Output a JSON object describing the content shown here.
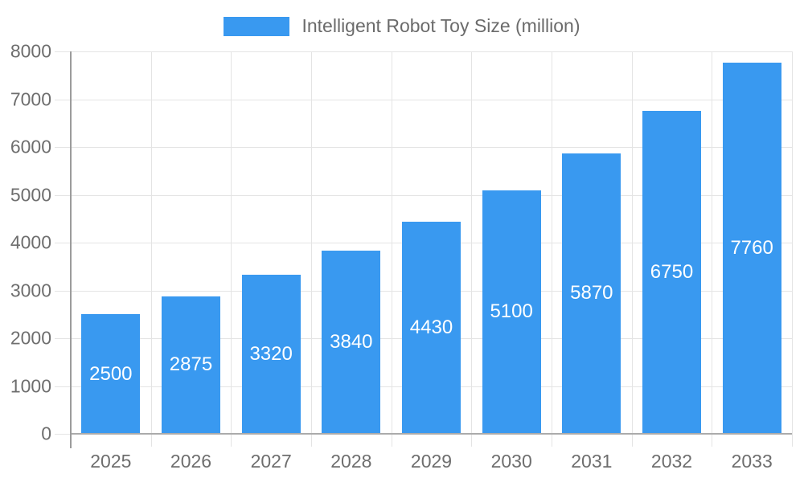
{
  "legend": {
    "label": "Intelligent Robot Toy Size (million)"
  },
  "chart_data": {
    "type": "bar",
    "title": "Intelligent Robot Toy Size (million)",
    "categories": [
      "2025",
      "2026",
      "2027",
      "2028",
      "2029",
      "2030",
      "2031",
      "2032",
      "2033"
    ],
    "values": [
      2500,
      2875,
      3320,
      3840,
      4430,
      5100,
      5870,
      6750,
      7760
    ],
    "series": [
      {
        "name": "Intelligent Robot Toy Size (million)",
        "values": [
          2500,
          2875,
          3320,
          3840,
          4430,
          5100,
          5870,
          6750,
          7760
        ]
      }
    ],
    "xlabel": "",
    "ylabel": "",
    "ylim": [
      0,
      8000
    ],
    "y_ticks": [
      0,
      1000,
      2000,
      3000,
      4000,
      5000,
      6000,
      7000,
      8000
    ],
    "grid": true,
    "legend_position": "top-center",
    "bar_labels_inside": true,
    "colors": {
      "bar": "#3999f0",
      "bar_label": "#ffffff",
      "grid": "#e4e4e4",
      "y_axis_line": "#9c9c9c",
      "x_axis_line": "#ababab",
      "tick_text": "#6e6e6e",
      "legend_text": "#6b6b6b"
    }
  }
}
